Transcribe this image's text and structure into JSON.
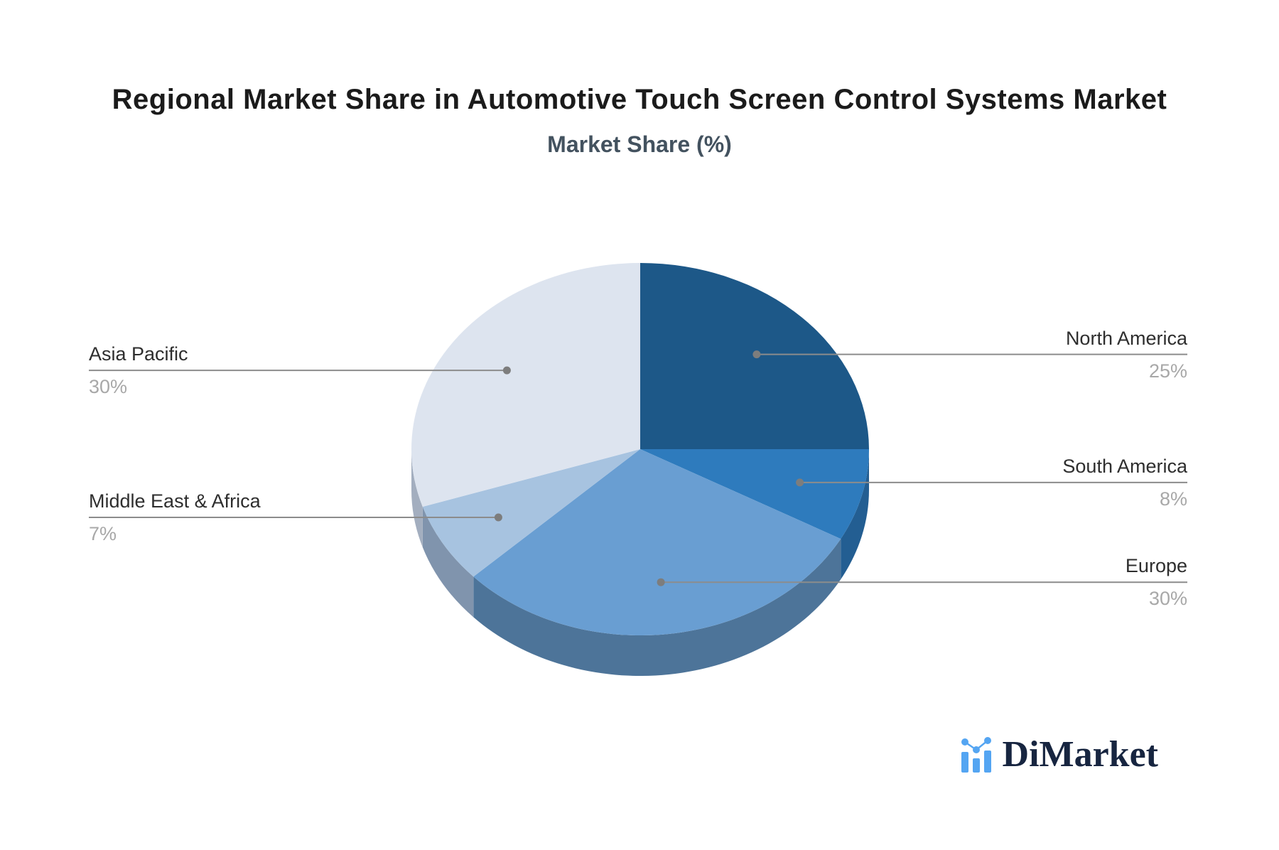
{
  "title": "Regional Market Share in Automotive Touch Screen Control Systems Market",
  "subtitle": "Market Share (%)",
  "logo": {
    "text": "DiMarket"
  },
  "colors": {
    "background": "#ffffff",
    "title": "#1b1b1b",
    "subtitle": "#43525f",
    "leader_line": "#8c8c8c",
    "leader_dot": "#7d7d7d",
    "segment_label": "#2e2e2e",
    "segment_pct": "#a8a8a8",
    "logo_text": "#172540",
    "logo_icon": "#54a5f2"
  },
  "chart_data": {
    "type": "pie",
    "title": "Regional Market Share in Automotive Touch Screen Control Systems Market",
    "subtitle": "Market Share (%)",
    "unit": "%",
    "style": "3d",
    "start_angle_deg": 0,
    "direction": "clockwise",
    "legend_position": "callout-labels",
    "segments": [
      {
        "label": "North America",
        "value": 25,
        "display": "25%",
        "color": "#1d5888",
        "side_color": "#16446b",
        "label_side": "right"
      },
      {
        "label": "South America",
        "value": 8,
        "display": "8%",
        "color": "#2e7bbd",
        "side_color": "#235e92",
        "label_side": "right"
      },
      {
        "label": "Europe",
        "value": 30,
        "display": "30%",
        "color": "#699ed2",
        "side_color": "#4d7499",
        "label_side": "right"
      },
      {
        "label": "Middle East & Africa",
        "value": 7,
        "display": "7%",
        "color": "#a7c3e0",
        "side_color": "#8094ad",
        "label_side": "left"
      },
      {
        "label": "Asia Pacific",
        "value": 30,
        "display": "30%",
        "color": "#dde4ef",
        "side_color": "#a3aebf",
        "label_side": "left"
      }
    ]
  }
}
